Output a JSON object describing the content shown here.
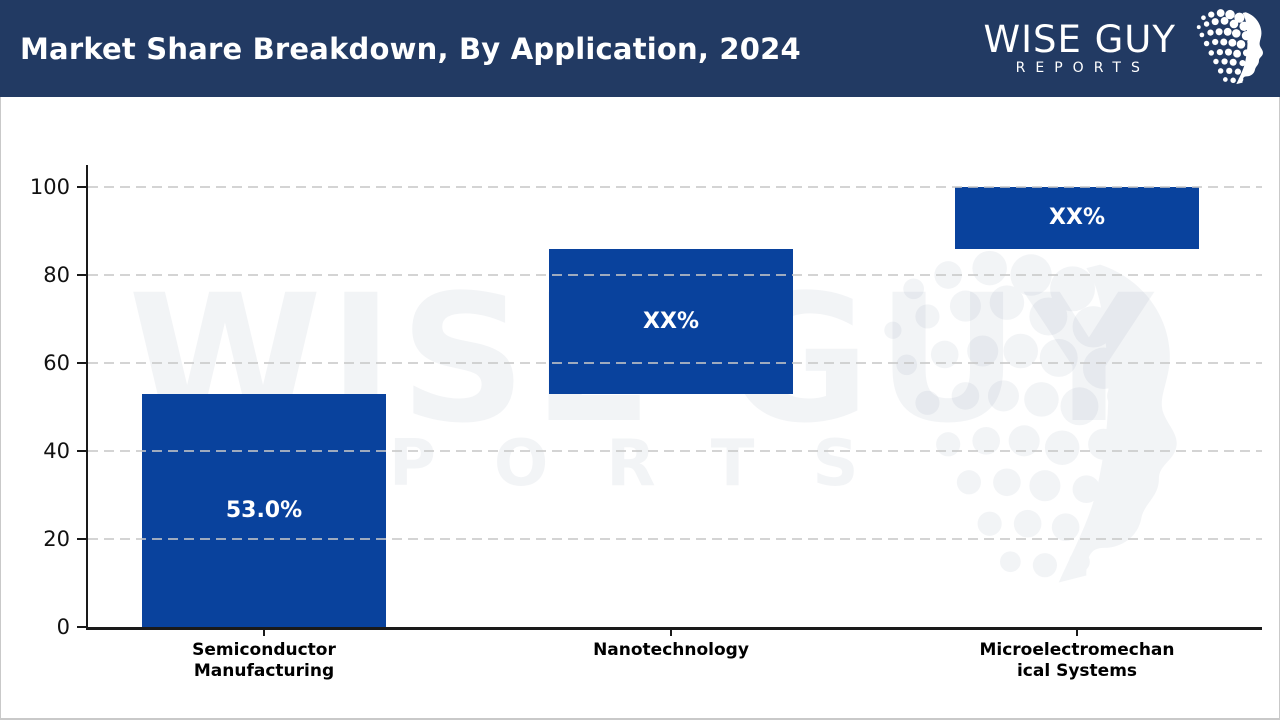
{
  "page": {
    "background": "#ffffff",
    "border_color": "#c9c9c9"
  },
  "header": {
    "title": "Market Share Breakdown, By Application, 2024",
    "background": "#223a63",
    "text_color": "#ffffff",
    "logo": {
      "wordmark": "WISE GUY",
      "subtext": "REPORTS"
    }
  },
  "watermark": {
    "wordmark": "WISE GUY",
    "subtext": "REPORTS"
  },
  "chart_data": {
    "type": "bar",
    "subtype": "floating-stacked-segments",
    "title": "Market Share Breakdown, By Application, 2024",
    "categories": [
      "Semiconductor Manufacturing",
      "Nanotechnology",
      "Microelectromechanical Systems"
    ],
    "category_label_lines": [
      [
        "Semiconductor",
        "Manufacturing"
      ],
      [
        "Nanotechnology"
      ],
      [
        "Microelectromechan",
        "ical Systems"
      ]
    ],
    "bars": [
      {
        "category": "Semiconductor Manufacturing",
        "start": 0,
        "end": 53,
        "value": 53.0,
        "label": "53.0%"
      },
      {
        "category": "Nanotechnology",
        "start": 53,
        "end": 86,
        "value": 33.0,
        "label": "XX%"
      },
      {
        "category": "Microelectromechanical Systems",
        "start": 86,
        "end": 100,
        "value": 14.0,
        "label": "XX%"
      }
    ],
    "ylim": [
      0,
      100
    ],
    "yticks": [
      0,
      20,
      40,
      60,
      80,
      100
    ],
    "xlabel": "",
    "ylabel": "",
    "grid": "horizontal-dashed",
    "legend": null,
    "bar_color": "#09429d",
    "bar_label_color": "#ffffff",
    "axis_color": "#1a1a1a",
    "grid_color": "#d4d4d4"
  }
}
